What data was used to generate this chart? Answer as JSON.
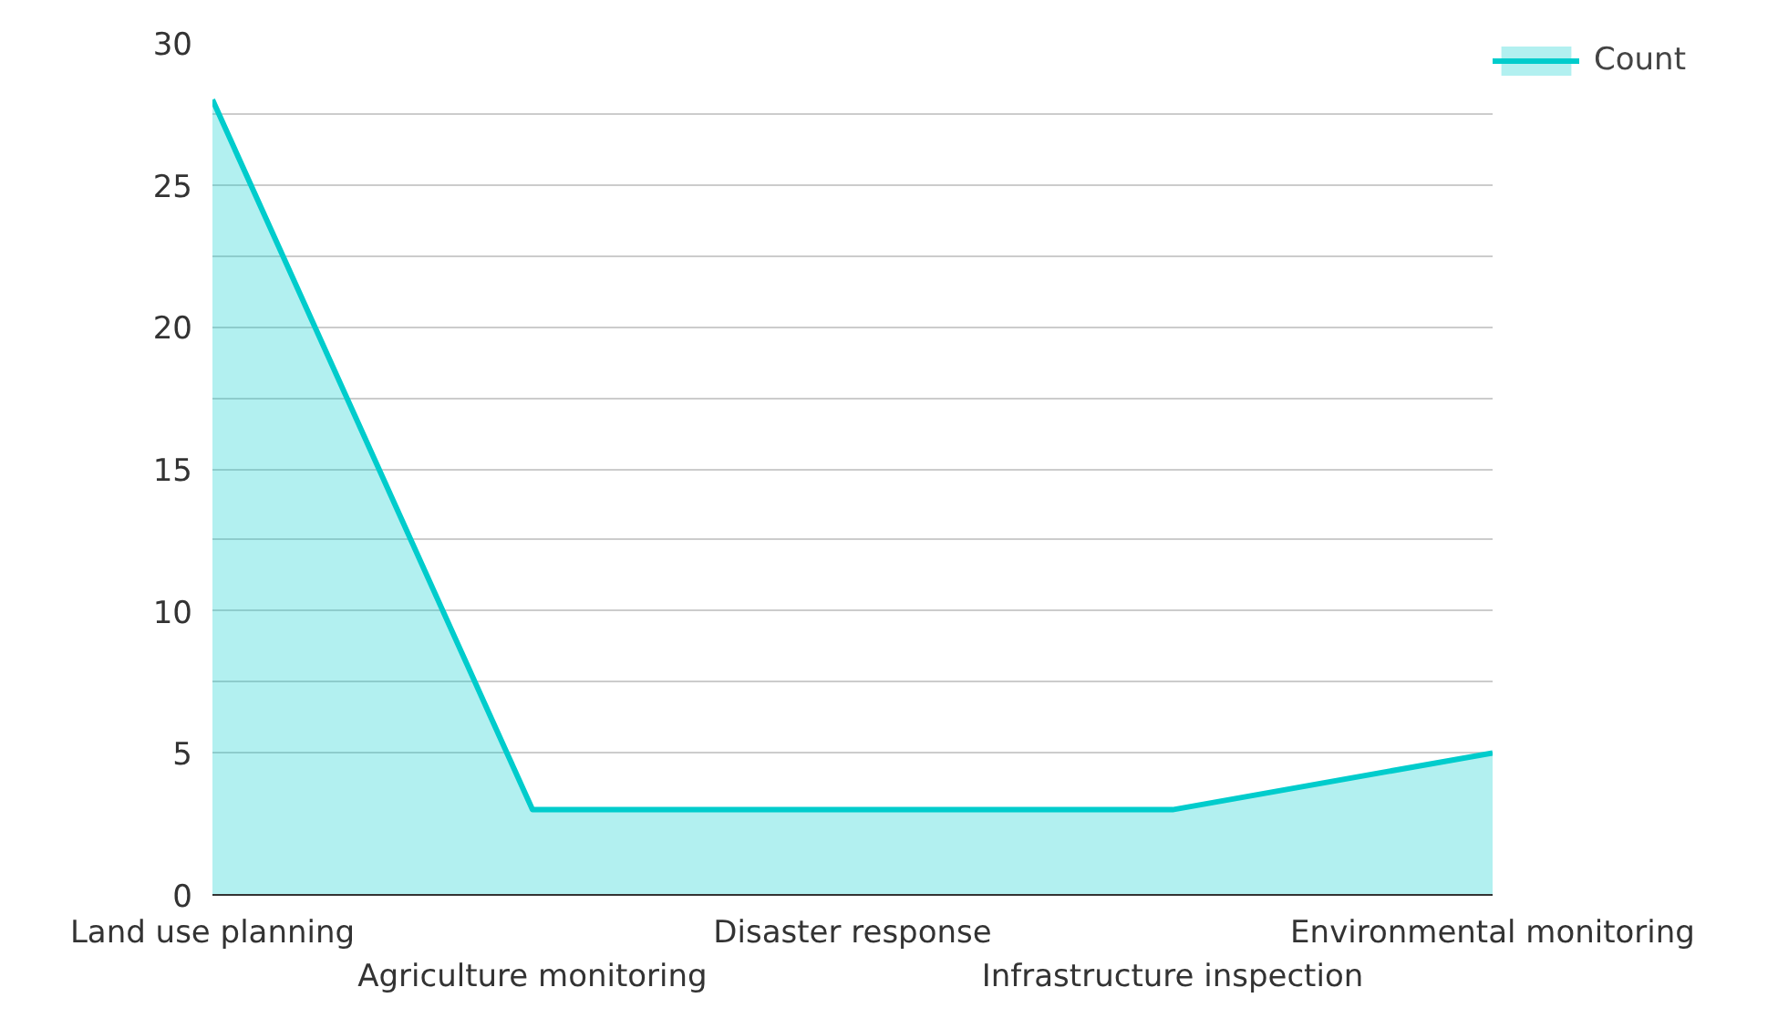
{
  "chart_data": {
    "type": "area",
    "categories": [
      "Land use planning",
      "Agriculture monitoring",
      "Disaster response",
      "Infrastructure inspection",
      "Environmental monitoring"
    ],
    "series": [
      {
        "name": "Count",
        "color": "#00cccc",
        "values": [
          28,
          3,
          3,
          3,
          5
        ]
      }
    ],
    "ylim": [
      0,
      30
    ],
    "yticks": [
      0,
      5,
      {
        "value": 7.5,
        "label": null
      },
      10,
      {
        "value": 12.5,
        "label": null
      },
      15,
      {
        "value": 17.5,
        "label": null
      },
      20,
      {
        "value": 22.5,
        "label": null
      },
      25,
      {
        "value": 27.5,
        "label": null
      },
      30
    ],
    "grid": "y",
    "legend": "top right",
    "marker": "none",
    "line_style": "solid"
  }
}
